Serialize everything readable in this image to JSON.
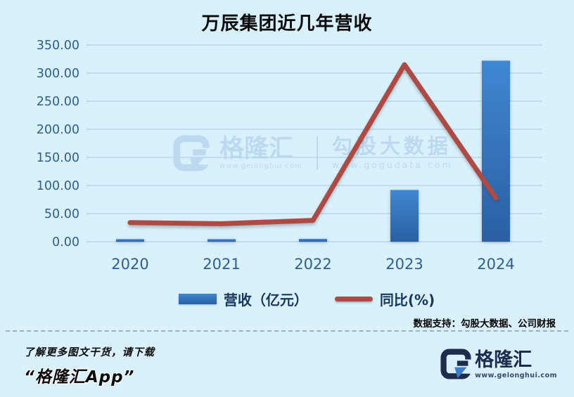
{
  "title": "万辰集团近几年营收",
  "chart_data": {
    "type": "bar",
    "combo": "bar+line",
    "categories": [
      "2020",
      "2021",
      "2022",
      "2023",
      "2024"
    ],
    "series": [
      {
        "name": "营收（亿元）",
        "type": "bar",
        "values": [
          4.5,
          4.5,
          5.0,
          92.0,
          322.0
        ]
      },
      {
        "name": "同比(%)",
        "type": "line",
        "values": [
          34,
          32,
          38,
          315,
          78
        ]
      }
    ],
    "title": "万辰集团近几年营收",
    "xlabel": "",
    "ylabel": "",
    "ylim": [
      0,
      350
    ],
    "grid": true,
    "legend_position": "bottom",
    "yticks": [
      {
        "label": "350.00",
        "value": 350
      },
      {
        "label": "300.00",
        "value": 300
      },
      {
        "label": "250.00",
        "value": 250
      },
      {
        "label": "200.00",
        "value": 200
      },
      {
        "label": "150.00",
        "value": 150
      },
      {
        "label": "100.00",
        "value": 100
      },
      {
        "label": "50.00",
        "value": 50
      },
      {
        "label": "0.00",
        "value": 0
      }
    ]
  },
  "watermark": {
    "left_brand": "格隆汇",
    "left_url": "www.gelonghui.com",
    "right_brand": "勾股大数据",
    "right_url": "www.gogudata.com"
  },
  "source_note": "数据支持：勾股大数据、公司财报",
  "footer": {
    "promo_line": "了解更多图文干货，请下载",
    "app_name": "“格隆汇App”",
    "brand": "格隆汇",
    "brand_url": "www.gelonghui.com"
  },
  "colors": {
    "background": "#d9f1fc",
    "grid": "#b7d7ee",
    "axis_text": "#2d5f92",
    "bar_top": "#3f87d2",
    "bar_bottom": "#2a5fa3",
    "bar_legend": "#2e6fb7",
    "line": "#ad4a44",
    "legend_text": "#17375e",
    "brand_navy": "#1d2b4d",
    "brand_blue": "#3a7ec9",
    "watermark": "#b3d2ec"
  }
}
